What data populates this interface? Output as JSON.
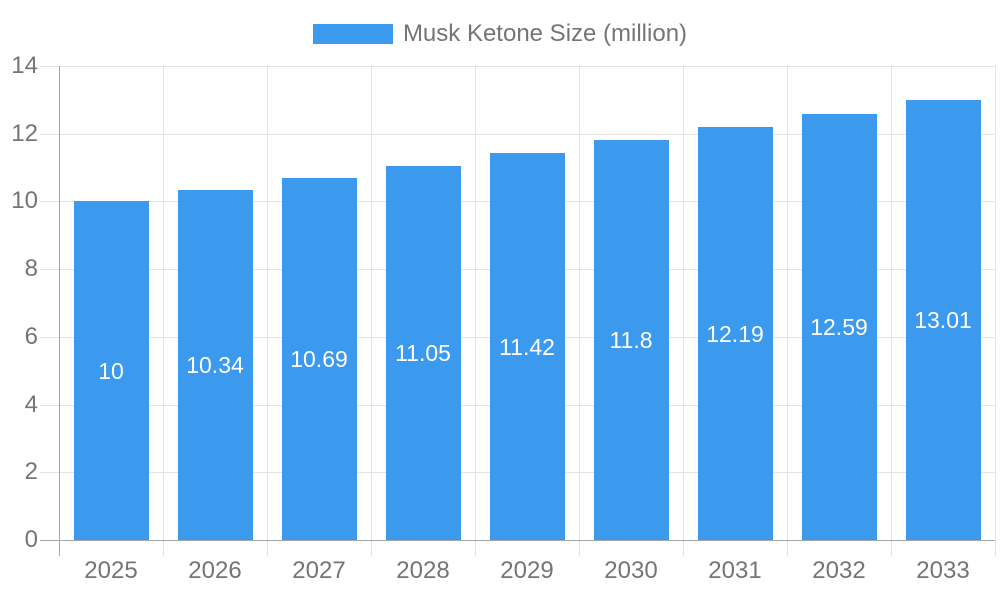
{
  "legend": {
    "label": "Musk Ketone Size (million)"
  },
  "colors": {
    "bar": "#3b99ee",
    "grid": "#e4e4e4",
    "axis": "#a6a6a6",
    "tick_label": "#757575",
    "value_label": "#ffffff",
    "background": "#ffffff"
  },
  "chart_data": {
    "type": "bar",
    "title": "Musk Ketone Size (million)",
    "categories": [
      "2025",
      "2026",
      "2027",
      "2028",
      "2029",
      "2030",
      "2031",
      "2032",
      "2033"
    ],
    "series": [
      {
        "name": "Musk Ketone Size (million)",
        "values": [
          10,
          10.34,
          10.69,
          11.05,
          11.42,
          11.8,
          12.19,
          12.59,
          13.01
        ]
      }
    ],
    "value_labels": [
      "10",
      "10.34",
      "10.69",
      "11.05",
      "11.42",
      "11.8",
      "12.19",
      "12.59",
      "13.01"
    ],
    "xlabel": "",
    "ylabel": "",
    "ylim": [
      0,
      14
    ],
    "yticks": [
      0,
      2,
      4,
      6,
      8,
      10,
      12,
      14
    ],
    "grid": true,
    "legend_position": "top-center",
    "value_label_position": "inside-middle"
  }
}
